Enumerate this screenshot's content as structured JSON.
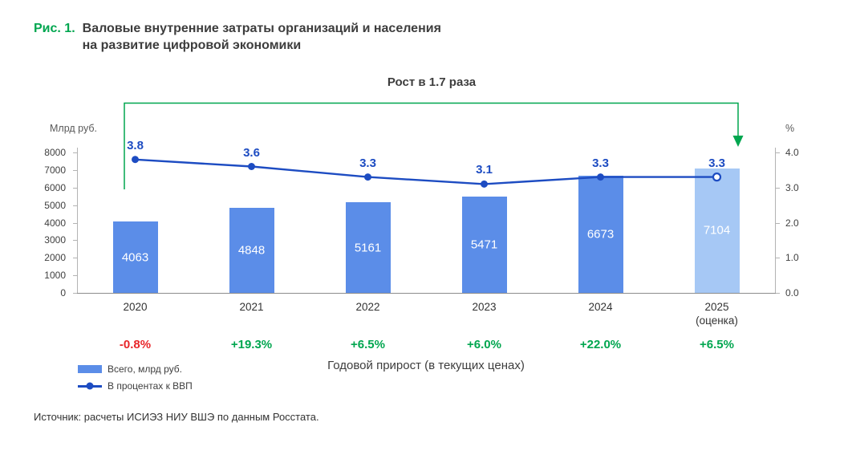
{
  "figure": {
    "fig_label": "Рис. 1.",
    "title_line1": "Валовые внутренние затраты организаций и населения",
    "title_line2": "на развитие цифровой экономики",
    "growth_annotation": "Рост в 1.7 раза",
    "left_axis_label": "Млрд руб.",
    "right_axis_label": "%",
    "growth_row_label": "Годовой прирост (в текущих ценах)",
    "source": "Источник: расчеты ИСИЭЗ НИУ ВШЭ по данным Росстата."
  },
  "chart_data": {
    "type": "bar+line",
    "title": "Валовые внутренние затраты организаций и населения на развитие цифровой экономики",
    "categories": [
      "2020",
      "2021",
      "2022",
      "2023",
      "2024",
      "2025"
    ],
    "category_notes": [
      "",
      "",
      "",
      "",
      "",
      "(оценка)"
    ],
    "series": [
      {
        "name": "Всего, млрд руб.",
        "kind": "bar",
        "axis": "left",
        "values": [
          4063,
          4848,
          5161,
          5471,
          6673,
          7104
        ]
      },
      {
        "name": "В процентах к ВВП",
        "kind": "line",
        "axis": "right",
        "values": [
          3.8,
          3.6,
          3.3,
          3.1,
          3.3,
          3.3
        ]
      }
    ],
    "growth_labels": [
      "-0.8%",
      "+19.3%",
      "+6.5%",
      "+6.0%",
      "+22.0%",
      "+6.5%"
    ],
    "left_axis": {
      "min": 0,
      "max": 8000,
      "ticks": [
        "8000",
        "7000",
        "6000",
        "5000",
        "4000",
        "3000",
        "2000",
        "1000",
        "0"
      ]
    },
    "right_axis": {
      "min": 0,
      "max": 4,
      "ticks": [
        "4.0",
        "3.0",
        "2.0",
        "1.0",
        "0.0"
      ]
    },
    "grid": false,
    "legend_position": "bottom-left",
    "estimate_last_category": true,
    "colors": {
      "bar": "#5b8de8",
      "bar_estimate": "#a6c8f5",
      "line": "#1d4cc2",
      "growth_positive": "#00a64f",
      "growth_negative": "#e8262a",
      "accent_green": "#00a64f"
    }
  }
}
